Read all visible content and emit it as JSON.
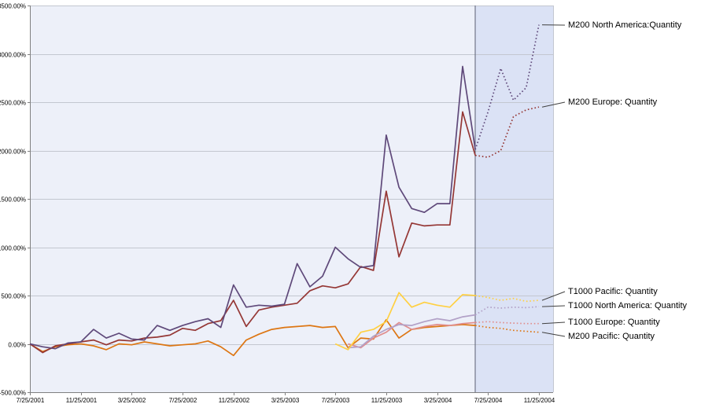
{
  "chart_data": {
    "type": "line",
    "title": "",
    "ylim": [
      -500,
      3500
    ],
    "forecast_start_index": 35,
    "x_dates": [
      "7/25/2001",
      "8/25/2001",
      "9/25/2001",
      "10/25/2001",
      "11/25/2001",
      "12/25/2001",
      "1/25/2002",
      "2/25/2002",
      "3/25/2002",
      "4/25/2002",
      "5/25/2002",
      "6/25/2002",
      "7/25/2002",
      "8/25/2002",
      "9/25/2002",
      "10/25/2002",
      "11/25/2002",
      "12/25/2002",
      "1/25/2003",
      "2/25/2003",
      "3/25/2003",
      "4/25/2003",
      "5/25/2003",
      "6/25/2003",
      "7/25/2003",
      "8/25/2003",
      "9/25/2003",
      "10/25/2003",
      "11/25/2003",
      "12/25/2003",
      "1/25/2004",
      "2/25/2004",
      "3/25/2004",
      "4/25/2004",
      "5/25/2004",
      "6/25/2004",
      "7/25/2004",
      "8/25/2004",
      "9/25/2004",
      "10/25/2004",
      "11/25/2004"
    ],
    "x_tick_indices": [
      0,
      4,
      8,
      12,
      16,
      20,
      24,
      28,
      32,
      36,
      40
    ],
    "x_tick_labels": [
      "7/25/2001",
      "11/25/2001",
      "3/25/2002",
      "7/25/2002",
      "11/25/2002",
      "3/25/2003",
      "7/25/2003",
      "11/25/2003",
      "3/25/2004",
      "7/25/2004",
      "11/25/2004"
    ],
    "y_tick_values": [
      3500,
      3000,
      2500,
      2000,
      1500,
      1000,
      500,
      0,
      -500
    ],
    "y_tick_labels": [
      "3500.00%",
      "3000.00%",
      "2500.00%",
      "2000.00%",
      "1500.00%",
      "1000.00%",
      "500.00%",
      "0.00%",
      "-500.00%"
    ],
    "colors": {
      "plot_bg": "#edf0f9",
      "forecast_bg": "#dbe2f5",
      "forecast_line": "#5a5f73",
      "gridline": "#c3c7d0",
      "axis": "#808080",
      "leader": "#404040",
      "text": "#000000"
    },
    "series": [
      {
        "name": "M200 North America",
        "label": "M200 North America:Quantity",
        "color": "#5f497a",
        "values": [
          0,
          -30,
          -50,
          10,
          20,
          150,
          60,
          110,
          50,
          40,
          190,
          140,
          190,
          230,
          260,
          170,
          610,
          380,
          400,
          390,
          410,
          830,
          590,
          700,
          1000,
          880,
          790,
          810,
          2160,
          1620,
          1400,
          1360,
          1450,
          1450,
          2870,
          2010,
          2400,
          2850,
          2520,
          2650,
          3300
        ]
      },
      {
        "name": "M200 Europe",
        "label": "M200 Europe: Quantity",
        "color": "#953735",
        "values": [
          0,
          -90,
          -20,
          0,
          20,
          40,
          -10,
          40,
          30,
          60,
          70,
          90,
          160,
          140,
          210,
          240,
          450,
          180,
          350,
          380,
          400,
          420,
          550,
          600,
          580,
          620,
          800,
          760,
          1580,
          900,
          1250,
          1220,
          1230,
          1230,
          2400,
          1950,
          1930,
          2000,
          2350,
          2420,
          2450
        ]
      },
      {
        "name": "T1000 Pacific",
        "label": "T1000 Pacific: Quantity",
        "color": "#ffd042",
        "values": [
          null,
          null,
          null,
          null,
          null,
          null,
          null,
          null,
          null,
          null,
          null,
          null,
          null,
          null,
          null,
          null,
          null,
          null,
          null,
          null,
          null,
          null,
          null,
          null,
          0,
          -60,
          120,
          150,
          230,
          530,
          380,
          430,
          400,
          380,
          510,
          500,
          480,
          450,
          470,
          440,
          450
        ]
      },
      {
        "name": "T1000 North America",
        "label": "T1000 North America: Quantity",
        "color": "#b2a1c7",
        "values": [
          null,
          null,
          null,
          null,
          null,
          null,
          null,
          null,
          null,
          null,
          null,
          null,
          null,
          null,
          null,
          null,
          null,
          null,
          null,
          null,
          null,
          null,
          null,
          null,
          null,
          -40,
          -30,
          80,
          150,
          200,
          190,
          230,
          260,
          240,
          280,
          300,
          380,
          370,
          380,
          375,
          385
        ]
      },
      {
        "name": "T1000 Europe",
        "label": "T1000 Europe: Quantity",
        "color": "#e08e8e",
        "values": [
          null,
          null,
          null,
          null,
          null,
          null,
          null,
          null,
          null,
          null,
          null,
          null,
          null,
          null,
          null,
          null,
          null,
          null,
          null,
          null,
          null,
          null,
          null,
          null,
          null,
          0,
          -40,
          60,
          120,
          220,
          150,
          180,
          200,
          190,
          210,
          220,
          230,
          220,
          215,
          210,
          210
        ]
      },
      {
        "name": "M200 Pacific",
        "label": "M200 Pacific: Quantity",
        "color": "#dd7613",
        "values": [
          0,
          -80,
          -30,
          -10,
          0,
          -20,
          -60,
          0,
          -10,
          20,
          0,
          -20,
          -10,
          0,
          30,
          -30,
          -120,
          40,
          100,
          150,
          170,
          180,
          190,
          170,
          180,
          -40,
          60,
          50,
          250,
          60,
          150,
          170,
          180,
          190,
          200,
          190,
          170,
          160,
          140,
          130,
          120
        ]
      }
    ]
  }
}
